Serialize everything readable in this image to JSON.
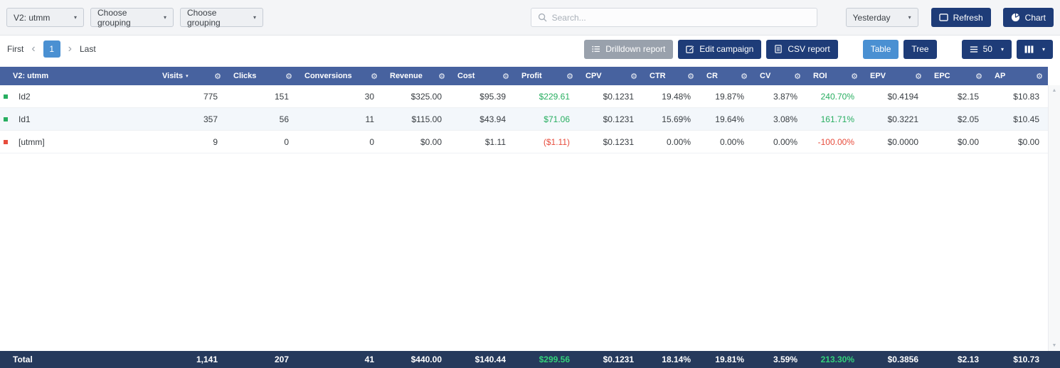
{
  "toolbar": {
    "campaign_dropdown": "V2: utmm",
    "grouping_dropdown_1": "Choose grouping",
    "grouping_dropdown_2": "Choose grouping",
    "search_placeholder": "Search...",
    "date_dropdown": "Yesterday",
    "refresh_button": "Refresh",
    "chart_button": "Chart"
  },
  "pagination": {
    "first_label": "First",
    "current_page": "1",
    "last_label": "Last"
  },
  "actions": {
    "drilldown_report": "Drilldown report",
    "edit_campaign": "Edit campaign",
    "csv_report": "CSV report",
    "table_view": "Table",
    "tree_view": "Tree",
    "rows_per_page": "50"
  },
  "table": {
    "first_column_header": "V2: utmm",
    "columns": [
      {
        "label": "Visits",
        "sortable": true
      },
      {
        "label": "Clicks"
      },
      {
        "label": "Conversions"
      },
      {
        "label": "Revenue"
      },
      {
        "label": "Cost"
      },
      {
        "label": "Profit"
      },
      {
        "label": "CPV"
      },
      {
        "label": "CTR"
      },
      {
        "label": "CR"
      },
      {
        "label": "CV"
      },
      {
        "label": "ROI"
      },
      {
        "label": "EPV"
      },
      {
        "label": "EPC"
      },
      {
        "label": "AP"
      }
    ],
    "rows": [
      {
        "status": "positive",
        "name": "Id2",
        "values": [
          "775",
          "151",
          "30",
          "$325.00",
          "$95.39",
          "$229.61",
          "$0.1231",
          "19.48%",
          "19.87%",
          "3.87%",
          "240.70%",
          "$0.4194",
          "$2.15",
          "$10.83"
        ],
        "value_colors": {
          "5": "positive",
          "10": "positive"
        }
      },
      {
        "status": "positive",
        "name": "Id1",
        "values": [
          "357",
          "56",
          "11",
          "$115.00",
          "$43.94",
          "$71.06",
          "$0.1231",
          "15.69%",
          "19.64%",
          "3.08%",
          "161.71%",
          "$0.3221",
          "$2.05",
          "$10.45"
        ],
        "value_colors": {
          "5": "positive",
          "10": "positive"
        }
      },
      {
        "status": "negative",
        "name": "[utmm]",
        "values": [
          "9",
          "0",
          "0",
          "$0.00",
          "$1.11",
          "($1.11)",
          "$0.1231",
          "0.00%",
          "0.00%",
          "0.00%",
          "-100.00%",
          "$0.0000",
          "$0.00",
          "$0.00"
        ],
        "value_colors": {
          "5": "negative",
          "10": "negative"
        }
      }
    ],
    "total": {
      "label": "Total",
      "values": [
        "1,141",
        "207",
        "41",
        "$440.00",
        "$140.44",
        "$299.56",
        "$0.1231",
        "18.14%",
        "19.81%",
        "3.59%",
        "213.30%",
        "$0.3856",
        "$2.13",
        "$10.73"
      ],
      "value_colors": {
        "5": "positive",
        "10": "positive"
      }
    }
  },
  "colors": {
    "header_blue": "#47629f",
    "total_navy": "#263a5c",
    "accent_blue": "#4a90d2",
    "navy": "#1e3c78",
    "positive": "#27ae60",
    "negative": "#e74c3c",
    "positive_bright": "#33d17a"
  }
}
